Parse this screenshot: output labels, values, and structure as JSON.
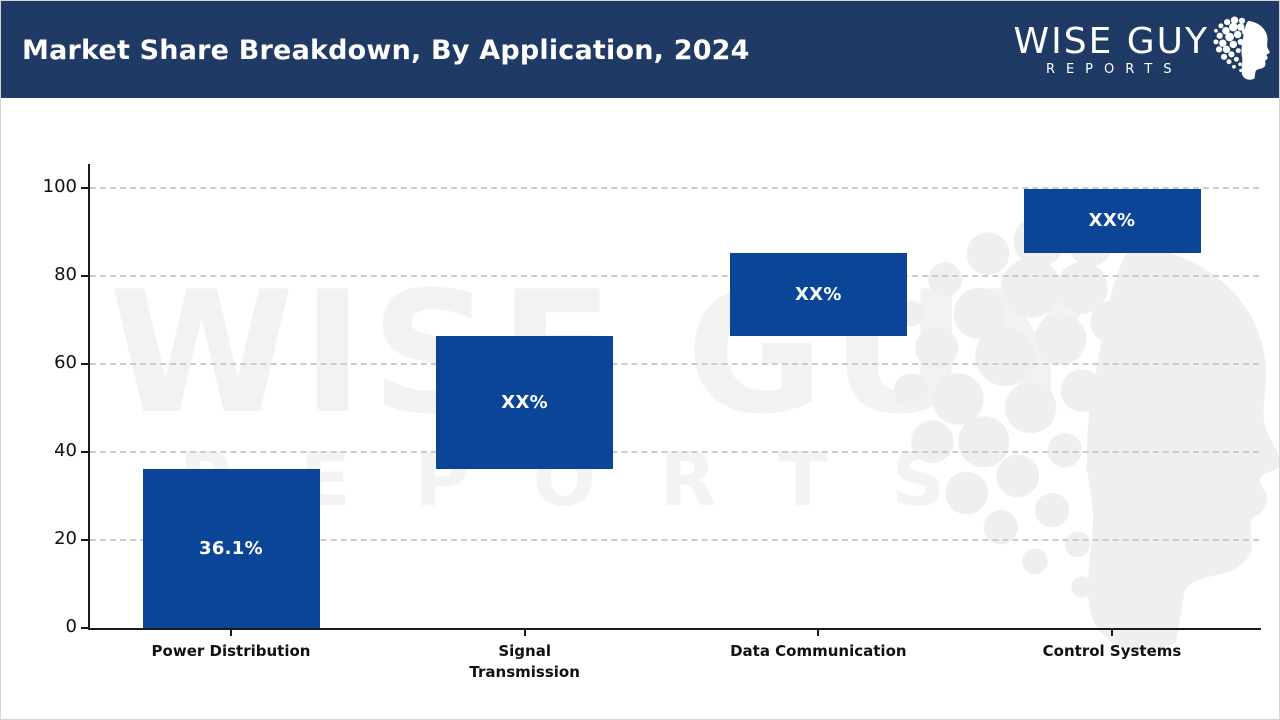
{
  "header": {
    "title": "Market Share Breakdown, By Application, 2024",
    "logo": {
      "line1": "WISE GUY",
      "line2": "REPORTS"
    }
  },
  "watermark": {
    "line1": "WISE GUY",
    "line2": "REPORTS"
  },
  "chart_data": {
    "type": "bar",
    "subtype": "waterfall",
    "title": "Market Share Breakdown, By Application, 2024",
    "categories": [
      "Power Distribution",
      "Signal\nTransmission",
      "Data Communication",
      "Control Systems"
    ],
    "bars": [
      {
        "category": "Power Distribution",
        "start": 0,
        "end": 36.1,
        "label": "36.1%"
      },
      {
        "category": "Signal\nTransmission",
        "start": 36.1,
        "end": 66.4,
        "label": "XX%"
      },
      {
        "category": "Data Communication",
        "start": 66.4,
        "end": 85.2,
        "label": "XX%"
      },
      {
        "category": "Control Systems",
        "start": 85.2,
        "end": 99.8,
        "label": "XX%"
      }
    ],
    "ylim": [
      0,
      105
    ],
    "yticks": [
      0,
      20,
      40,
      60,
      80,
      100
    ],
    "xlabel": "",
    "ylabel": "",
    "grid": true,
    "gridline_style": "dashed",
    "legend_position": "none",
    "colors": {
      "bar": "#0b4598",
      "grid": "#cccccc",
      "axis": "#1a1a1a",
      "header_bg": "#203a66",
      "bar_label_text": "#ffffff",
      "watermark": "#f2f2f2"
    }
  }
}
